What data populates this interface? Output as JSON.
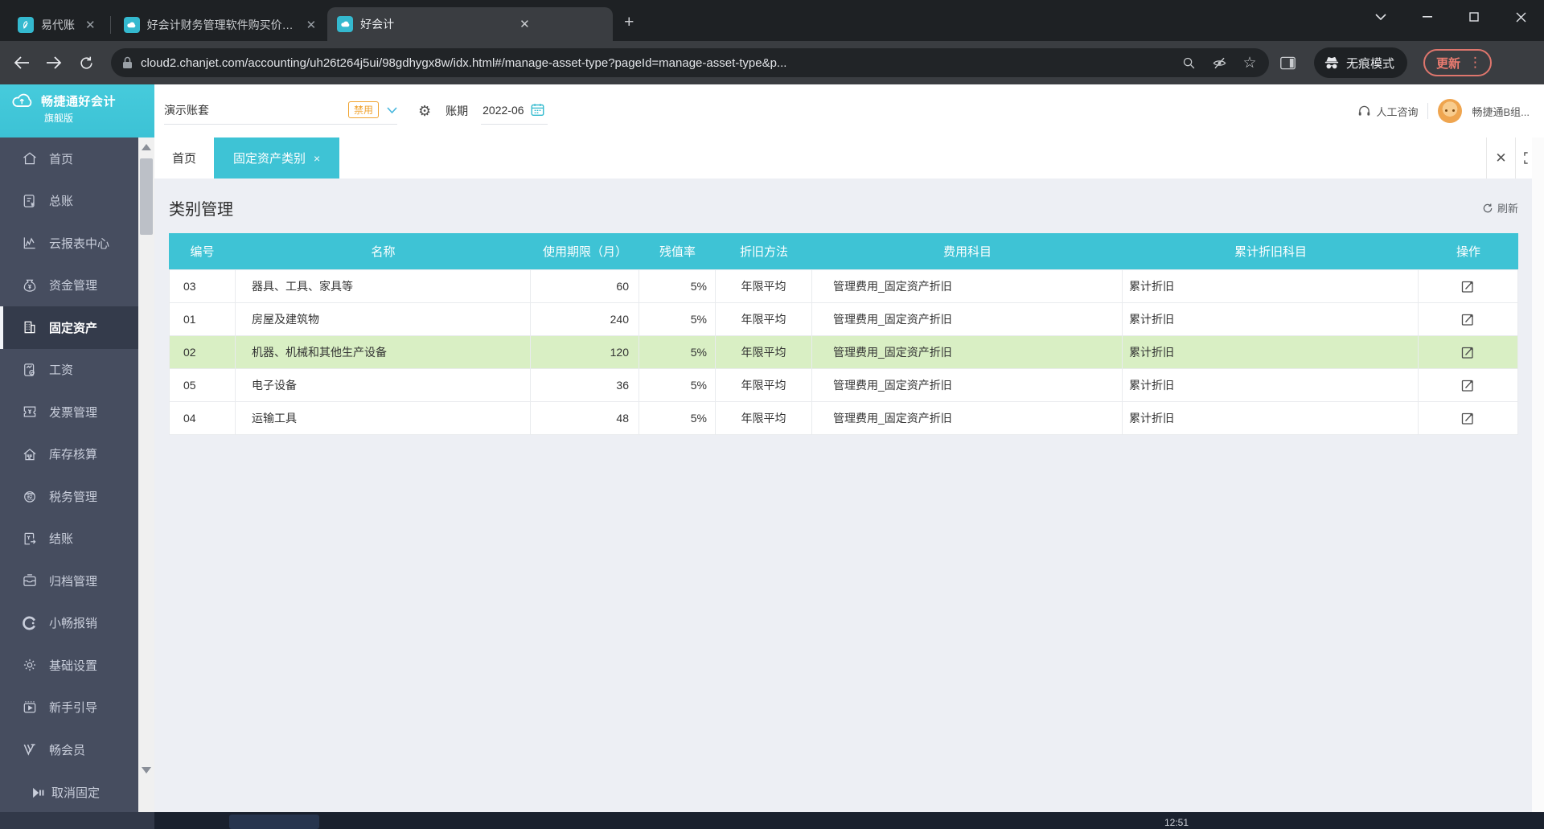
{
  "browser": {
    "tabs": [
      {
        "title": "易代账"
      },
      {
        "title": "好会计财务管理软件购买价格及"
      },
      {
        "title": "好会计"
      }
    ],
    "url": "cloud2.chanjet.com/accounting/uh26t264j5ui/98gdhygx8w/idx.html#/manage-asset-type?pageId=manage-asset-type&p...",
    "incognito_label": "无痕模式",
    "update_label": "更新",
    "menu_dots_glyph": "⋮",
    "star_glyph": "☆",
    "new_tab_glyph": "+"
  },
  "header": {
    "brand": "畅捷通好会计",
    "edition": "旗舰版",
    "account": "演示账套",
    "account_status": "禁用",
    "gear_glyph": "⚙",
    "period_label": "账期",
    "period_value": "2022-06",
    "support_label": "人工咨询",
    "user_label": "畅捷通B组..."
  },
  "sidebar": {
    "items": [
      {
        "label": "首页"
      },
      {
        "label": "总账"
      },
      {
        "label": "云报表中心"
      },
      {
        "label": "资金管理"
      },
      {
        "label": "固定资产",
        "active": true
      },
      {
        "label": "工资"
      },
      {
        "label": "发票管理"
      },
      {
        "label": "库存核算"
      },
      {
        "label": "税务管理"
      },
      {
        "label": "结账"
      },
      {
        "label": "归档管理"
      },
      {
        "label": "小畅报销"
      },
      {
        "label": "基础设置"
      },
      {
        "label": "新手引导"
      },
      {
        "label": "畅会员"
      }
    ],
    "unpin_label": "取消固定"
  },
  "workspace_tabs": {
    "home": "首页",
    "active": "固定资产类别",
    "close_glyph": "×"
  },
  "page": {
    "title": "类别管理",
    "refresh_label": "刷新"
  },
  "table": {
    "columns": [
      "编号",
      "名称",
      "使用期限（月）",
      "残值率",
      "折旧方法",
      "费用科目",
      "累计折旧科目",
      "操作"
    ],
    "rows": [
      {
        "code": "03",
        "name": "器具、工具、家具等",
        "months": "60",
        "rate": "5%",
        "method": "年限平均",
        "expense": "管理费用_固定资产折旧",
        "depreciation": "累计折旧"
      },
      {
        "code": "01",
        "name": "房屋及建筑物",
        "months": "240",
        "rate": "5%",
        "method": "年限平均",
        "expense": "管理费用_固定资产折旧",
        "depreciation": "累计折旧"
      },
      {
        "code": "02",
        "name": "机器、机械和其他生产设备",
        "months": "120",
        "rate": "5%",
        "method": "年限平均",
        "expense": "管理费用_固定资产折旧",
        "depreciation": "累计折旧",
        "highlighted": true
      },
      {
        "code": "05",
        "name": "电子设备",
        "months": "36",
        "rate": "5%",
        "method": "年限平均",
        "expense": "管理费用_固定资产折旧",
        "depreciation": "累计折旧"
      },
      {
        "code": "04",
        "name": "运输工具",
        "months": "48",
        "rate": "5%",
        "method": "年限平均",
        "expense": "管理费用_固定资产折旧",
        "depreciation": "累计折旧"
      }
    ]
  },
  "taskbar": {
    "time": "12:51"
  },
  "colors": {
    "brand_teal": "#3ec3d5",
    "highlight_green": "#d9efc4",
    "status_orange": "#f0a32f",
    "update_red": "#ea7b70",
    "sidebar_dark": "#464d5f"
  }
}
